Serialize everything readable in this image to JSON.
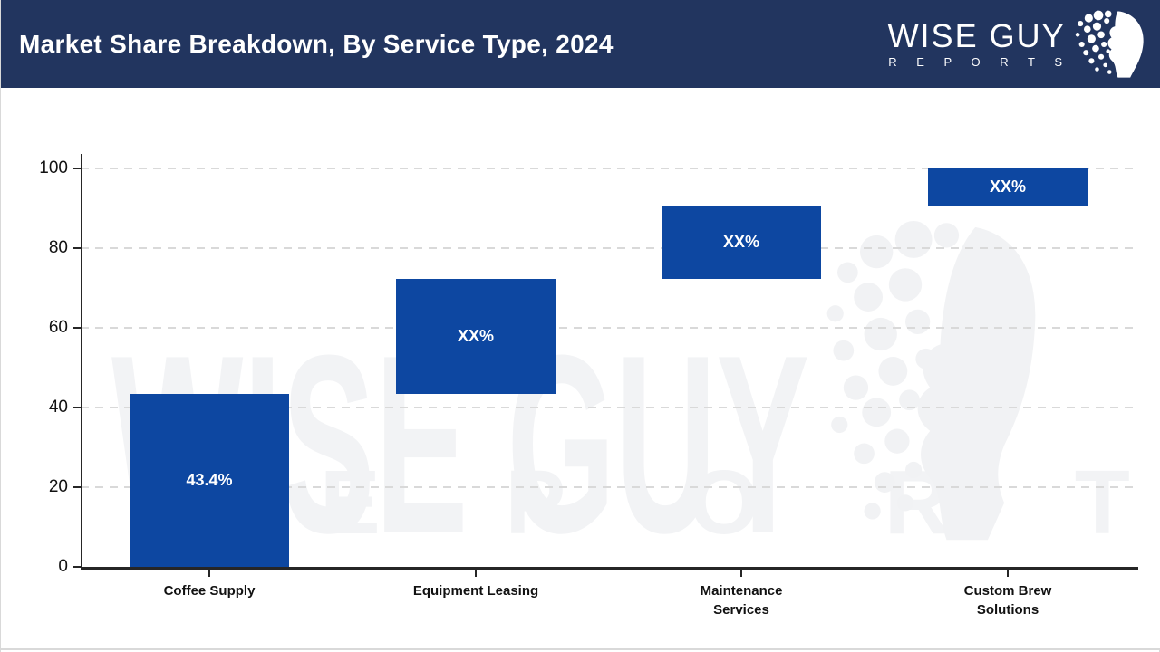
{
  "header": {
    "title": "Market Share Breakdown, By Service Type, 2024",
    "brand": {
      "name": "WISE GUY",
      "subtitle": "R E P O R T S"
    }
  },
  "watermark": {
    "line1": "WISE GUY",
    "line2": "R E P O R T S"
  },
  "colors": {
    "header_bg": "#22355f",
    "bar": "#0d47a1",
    "gridline": "#d9d9d9",
    "axis": "#262626",
    "watermark": "#f2f3f5",
    "value_label": "#ffffff",
    "tick_text": "#111111"
  },
  "chart_data": {
    "type": "bar",
    "subtype": "waterfall",
    "title": "Market Share Breakdown, By Service Type, 2024",
    "xlabel": "",
    "ylabel": "",
    "ylim": [
      0,
      103.6
    ],
    "yticks": [
      0,
      20,
      40,
      60,
      80,
      100
    ],
    "grid": "horizontal dashed",
    "legend": "none",
    "categories": [
      "Coffee Supply",
      "Equipment Leasing",
      "Maintenance Services",
      "Custom Brew Solutions"
    ],
    "category_display_labels": [
      "Coffee Supply",
      "Equipment Leasing",
      "Maintenance\nServices",
      "Custom Brew\nSolutions"
    ],
    "segments": [
      {
        "category": "Coffee Supply",
        "start": 0,
        "end": 43.4,
        "label": "43.4%"
      },
      {
        "category": "Equipment Leasing",
        "start": 43.4,
        "end": 72.3,
        "label": "XX%"
      },
      {
        "category": "Maintenance Services",
        "start": 72.3,
        "end": 90.7,
        "label": "XX%"
      },
      {
        "category": "Custom Brew Solutions",
        "start": 90.7,
        "end": 100,
        "label": "XX%"
      }
    ],
    "segment_sizes_est": [
      43.4,
      28.9,
      18.4,
      9.3
    ]
  }
}
